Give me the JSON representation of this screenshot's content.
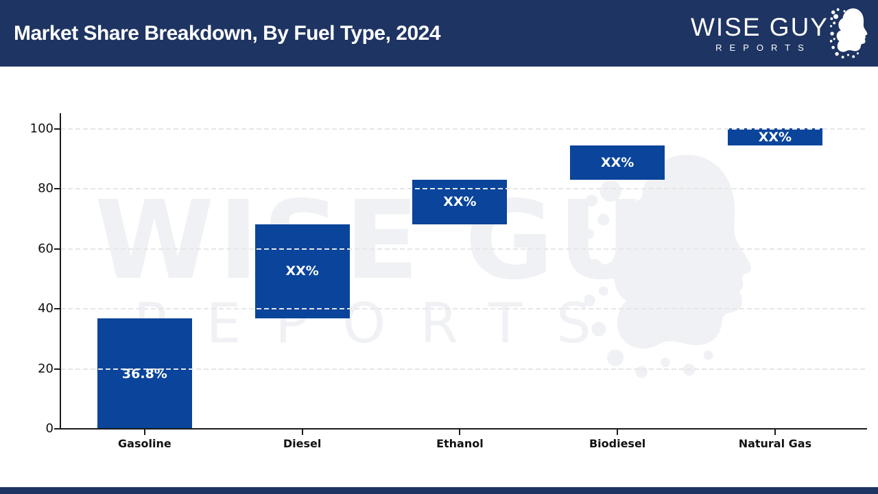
{
  "header": {
    "title": "Market Share Breakdown, By Fuel Type, 2024"
  },
  "logo": {
    "name": "WISE GUY",
    "subtitle": "REPORTS",
    "head_icon": "dotted-head-profile"
  },
  "watermark": {
    "line1": "WISE GUY",
    "line2": "REPORTS"
  },
  "colors": {
    "bar": "#0a449b",
    "header_bg": "#1e3462",
    "gridline": "#e6e6e6",
    "axis": "#1a1a1a",
    "watermark": "#f0f1f4",
    "bar_label_text": "#ffffff",
    "title_text": "#ffffff"
  },
  "chart_data": {
    "type": "bar",
    "subtype": "waterfall",
    "title": "Market Share Breakdown, By Fuel Type, 2024",
    "categories": [
      "Gasoline",
      "Diesel",
      "Ethanol",
      "Biodiesel",
      "Natural Gas"
    ],
    "series": [
      {
        "name": "Market Share",
        "segments": [
          {
            "category": "Gasoline",
            "start": 0,
            "end": 36.8,
            "label": "36.8%"
          },
          {
            "category": "Diesel",
            "start": 36.8,
            "end": 68.2,
            "label": "XX%"
          },
          {
            "category": "Ethanol",
            "start": 68.2,
            "end": 82.9,
            "label": "XX%"
          },
          {
            "category": "Biodiesel",
            "start": 82.9,
            "end": 94.3,
            "label": "XX%"
          },
          {
            "category": "Natural Gas",
            "start": 94.3,
            "end": 100.2,
            "label": "XX%"
          }
        ]
      }
    ],
    "xlabel": "",
    "ylabel": "",
    "ylim": [
      0,
      105.5
    ],
    "yticks": [
      0,
      20,
      40,
      60,
      80,
      100
    ],
    "grid": "horizontal-dashed",
    "legend": "none"
  }
}
